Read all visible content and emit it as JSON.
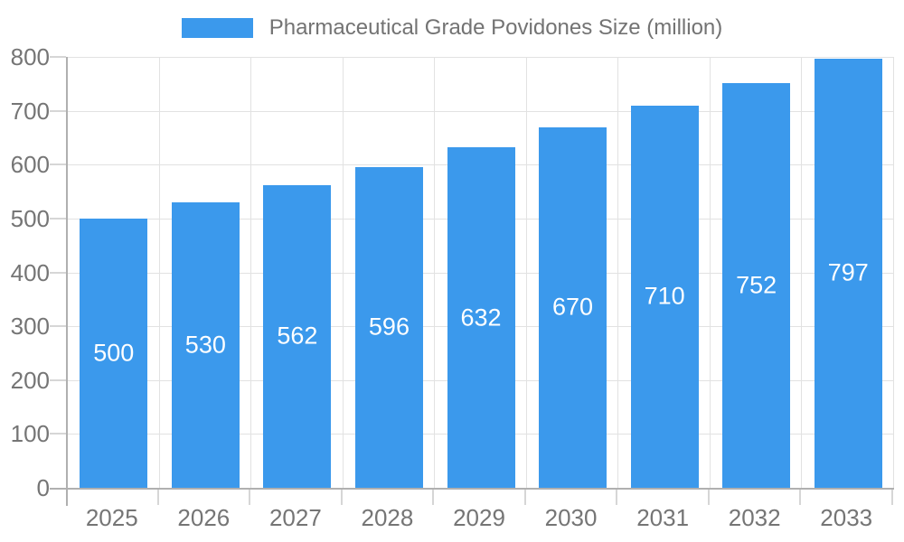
{
  "chart_data": {
    "type": "bar",
    "title": "Pharmaceutical Grade Povidones Size (million)",
    "categories": [
      "2025",
      "2026",
      "2027",
      "2028",
      "2029",
      "2030",
      "2031",
      "2032",
      "2033"
    ],
    "values": [
      500,
      530,
      562,
      596,
      632,
      670,
      710,
      752,
      797
    ],
    "xlabel": "",
    "ylabel": "",
    "ylim": [
      0,
      800
    ],
    "ytick_step": 100,
    "grid": true,
    "value_labels": "inside-center",
    "legend_position": "top-center",
    "colors": {
      "bar": "#3B99EC",
      "grid": "#E2E2E2",
      "axis": "#B0B0B0",
      "tick": "#D6D6D6",
      "label": "#757575",
      "title": "#737373",
      "value": "#FFFFFF"
    }
  }
}
